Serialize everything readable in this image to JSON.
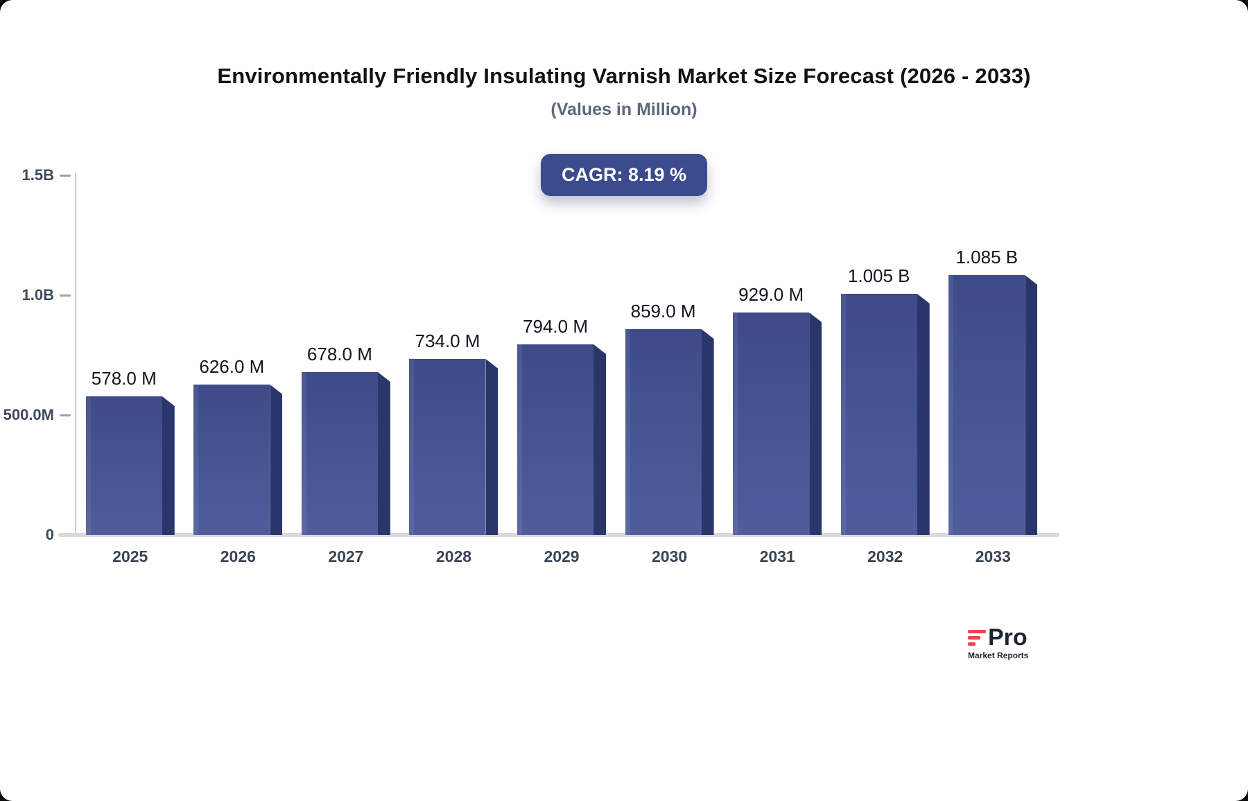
{
  "chart_data": {
    "type": "bar",
    "title": "Environmentally Friendly Insulating Varnish Market Size Forecast (2026 - 2033)",
    "subtitle": "(Values in Million)",
    "annotation": "CAGR: 8.19 %",
    "categories": [
      "2025",
      "2026",
      "2027",
      "2028",
      "2029",
      "2030",
      "2031",
      "2032",
      "2033"
    ],
    "values": [
      578,
      626,
      678,
      734,
      794,
      859,
      929,
      1005,
      1085
    ],
    "value_labels": [
      "578.0 M",
      "626.0 M",
      "678.0 M",
      "734.0 M",
      "794.0 M",
      "859.0 M",
      "929.0 M",
      "1.005 B",
      "1.085 B"
    ],
    "xlabel": "",
    "ylabel": "",
    "ylim": [
      0,
      1500
    ],
    "y_ticks": [
      {
        "value": 0,
        "label": "0"
      },
      {
        "value": 500,
        "label": "500.0M"
      },
      {
        "value": 1000,
        "label": "1.0B"
      },
      {
        "value": 1500,
        "label": "1.5B"
      }
    ],
    "grid": false,
    "legend": "none",
    "colors": {
      "bar_top": "#3e4b88",
      "bar_bottom": "#505d9c",
      "bar_side": "#2a3569",
      "badge_bg": "#3c4b8d",
      "badge_text": "#ffffff",
      "logo_accent": "#e54a4a"
    }
  },
  "branding": {
    "name": "Pro",
    "tagline": "Market Reports"
  }
}
